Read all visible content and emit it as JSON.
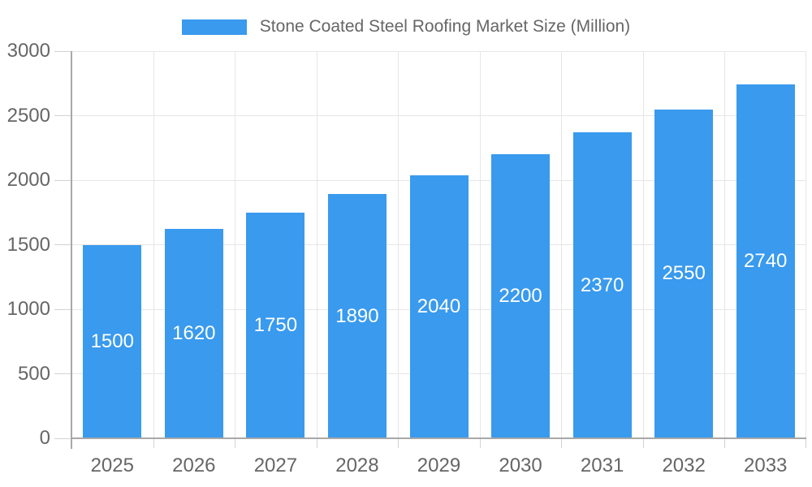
{
  "legend": {
    "series_label": "Stone Coated Steel Roofing Market Size (Million)"
  },
  "chart_data": {
    "type": "bar",
    "title": "Stone Coated Steel Roofing Market Size (Million)",
    "categories": [
      "2025",
      "2026",
      "2027",
      "2028",
      "2029",
      "2030",
      "2031",
      "2032",
      "2033"
    ],
    "values": [
      1500,
      1620,
      1750,
      1890,
      2040,
      2200,
      2370,
      2550,
      2740
    ],
    "xlabel": "",
    "ylabel": "",
    "ylim": [
      0,
      3000
    ],
    "yticks": [
      0,
      500,
      1000,
      1500,
      2000,
      2500,
      3000
    ],
    "grid": true,
    "legend_position": "top",
    "colors": {
      "bar": "#399aee",
      "bar_label": "#ffffff",
      "axis_text": "#666666",
      "grid_line": "#e6e6e6",
      "tick_mark": "#d2d2d2",
      "axis_line": "#a8a8a8",
      "background": "#ffffff"
    }
  }
}
